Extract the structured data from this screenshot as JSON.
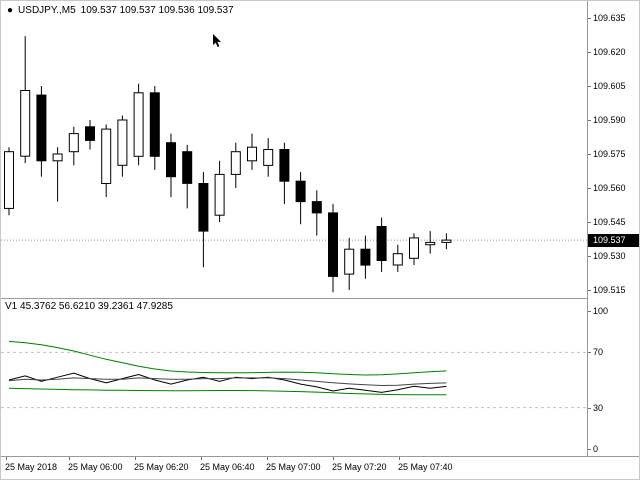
{
  "window": {
    "bg": "#ffffff",
    "separator_color": "#9a9a9a"
  },
  "header": {
    "bullet": "●",
    "symbol": "USDJPY.,M5",
    "quotes": "109.537 109.537 109.536 109.537"
  },
  "price_axis": {
    "labels": [
      "109.635",
      "109.620",
      "109.605",
      "109.590",
      "109.575",
      "109.560",
      "109.545",
      "109.530",
      "109.515"
    ],
    "current_price": "109.537"
  },
  "indicator_axis": {
    "labels": [
      "100",
      "70",
      "30",
      "0"
    ]
  },
  "indicator": {
    "label": "V1 45.3762 56.6210 39.2361 47.9285"
  },
  "time_axis": {
    "labels": [
      "25 May 2018",
      "25 May 06:00",
      "25 May 06:20",
      "25 May 06:40",
      "25 May 07:00",
      "25 May 07:20",
      "25 May 07:40"
    ]
  },
  "colors": {
    "up_fill": "#ffffff",
    "down_fill": "#000000",
    "outline": "#000000",
    "band": "#008000",
    "main": "#000000",
    "signal": "#444444",
    "level_dash": "#c0c0c0",
    "current_line": "#999999"
  },
  "chart_data": [
    {
      "type": "candlestick",
      "title": "USDJPY.,M5",
      "timeframe": "M5",
      "x": [
        "05:40",
        "05:45",
        "05:50",
        "05:55",
        "06:00",
        "06:05",
        "06:10",
        "06:15",
        "06:20",
        "06:25",
        "06:30",
        "06:35",
        "06:40",
        "06:45",
        "06:50",
        "06:55",
        "07:00",
        "07:05",
        "07:10",
        "07:15",
        "07:20",
        "07:25",
        "07:30",
        "07:35",
        "07:40",
        "07:45",
        "07:50",
        "07:55"
      ],
      "ohlc": [
        [
          109.551,
          109.578,
          109.548,
          109.576
        ],
        [
          109.574,
          109.627,
          109.571,
          109.603
        ],
        [
          109.601,
          109.605,
          109.565,
          109.572
        ],
        [
          109.572,
          109.578,
          109.554,
          109.575
        ],
        [
          109.576,
          109.587,
          109.57,
          109.584
        ],
        [
          109.587,
          109.59,
          109.577,
          109.581
        ],
        [
          109.562,
          109.588,
          109.556,
          109.586
        ],
        [
          109.57,
          109.592,
          109.565,
          109.59
        ],
        [
          109.574,
          109.606,
          109.57,
          109.602
        ],
        [
          109.602,
          109.605,
          109.568,
          109.574
        ],
        [
          109.58,
          109.584,
          109.556,
          109.565
        ],
        [
          109.576,
          109.579,
          109.551,
          109.562
        ],
        [
          109.562,
          109.567,
          109.525,
          109.541
        ],
        [
          109.548,
          109.572,
          109.545,
          109.566
        ],
        [
          109.566,
          109.58,
          109.56,
          109.576
        ],
        [
          109.572,
          109.584,
          109.568,
          109.578
        ],
        [
          109.57,
          109.582,
          109.565,
          109.577
        ],
        [
          109.577,
          109.58,
          109.553,
          109.563
        ],
        [
          109.563,
          109.567,
          109.544,
          109.554
        ],
        [
          109.554,
          109.559,
          109.539,
          109.549
        ],
        [
          109.549,
          109.553,
          109.514,
          109.521
        ],
        [
          109.522,
          109.538,
          109.515,
          109.533
        ],
        [
          109.533,
          109.539,
          109.52,
          109.526
        ],
        [
          109.543,
          109.547,
          109.523,
          109.528
        ],
        [
          109.526,
          109.535,
          109.523,
          109.531
        ],
        [
          109.529,
          109.54,
          109.526,
          109.538
        ],
        [
          109.535,
          109.541,
          109.531,
          109.536
        ],
        [
          109.536,
          109.54,
          109.533,
          109.537
        ]
      ],
      "y_ticks": [
        109.635,
        109.62,
        109.605,
        109.59,
        109.575,
        109.56,
        109.545,
        109.53,
        109.515
      ],
      "ylim": [
        109.505,
        109.645
      ],
      "current_price": 109.537
    },
    {
      "type": "line",
      "title": "V1",
      "ylim": [
        0,
        100
      ],
      "levels": [
        70,
        30
      ],
      "axis_ticks": [
        100,
        70,
        30,
        0
      ],
      "current_values": [
        45.3762,
        56.621,
        39.2361,
        47.9285
      ],
      "series": [
        {
          "name": "band-upper",
          "color": "#008000",
          "values": [
            78,
            77,
            75.5,
            73.5,
            71,
            68,
            65,
            62.5,
            60,
            58,
            56.5,
            55.8,
            55.4,
            55.2,
            55.2,
            55.3,
            55.5,
            55.7,
            55.6,
            55.2,
            54.6,
            54,
            53.6,
            53.8,
            54.4,
            55.2,
            56,
            56.62
          ]
        },
        {
          "name": "main",
          "color": "#000000",
          "values": [
            50,
            53,
            49,
            52,
            55,
            51,
            48,
            51,
            54,
            50,
            47,
            50,
            52,
            49,
            52,
            51,
            52,
            50,
            47,
            45,
            42,
            44,
            42.5,
            41,
            43,
            45.5,
            44,
            45.38
          ]
        },
        {
          "name": "signal",
          "color": "#444444",
          "values": [
            49.5,
            50.5,
            50,
            50.5,
            51.5,
            51,
            50.5,
            50.5,
            51.5,
            51,
            50.5,
            50.5,
            51,
            51,
            51.5,
            51.5,
            51.5,
            51,
            50,
            49,
            48,
            47.2,
            46.5,
            46,
            46.2,
            47,
            47.5,
            47.93
          ]
        },
        {
          "name": "band-lower",
          "color": "#008000",
          "values": [
            44,
            43.8,
            43.5,
            43.2,
            43,
            42.8,
            42.6,
            42.5,
            42.4,
            42.3,
            42.2,
            42.2,
            42.3,
            42.4,
            42.4,
            42.3,
            42.1,
            41.9,
            41.6,
            41.2,
            40.7,
            40.2,
            39.9,
            39.6,
            39.4,
            39.3,
            39.25,
            39.24
          ]
        }
      ]
    }
  ]
}
